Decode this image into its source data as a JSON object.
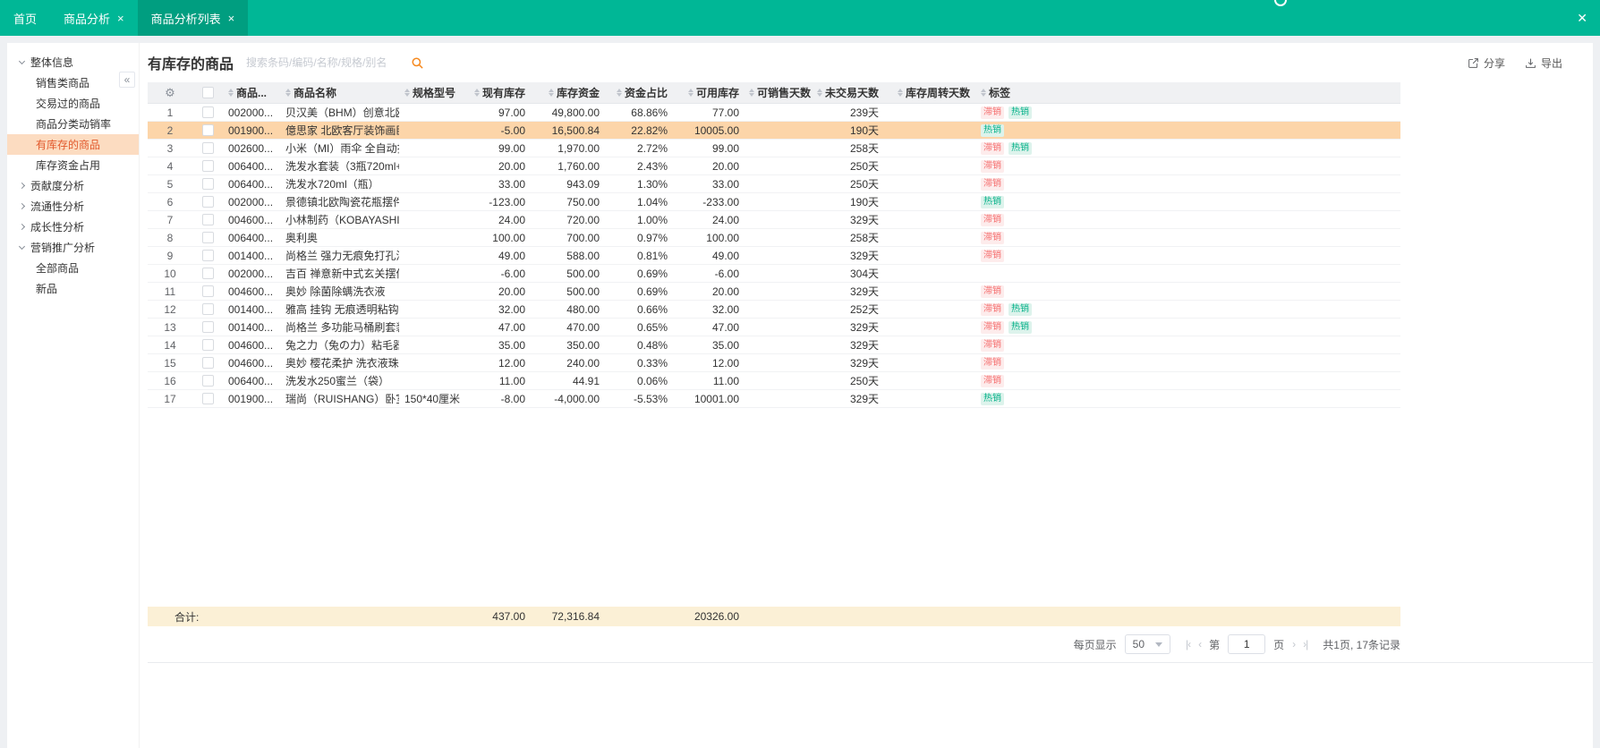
{
  "topbar": {
    "tabs": [
      {
        "label": "首页",
        "closable": false,
        "active": false
      },
      {
        "label": "商品分析",
        "closable": true,
        "active": false
      },
      {
        "label": "商品分析列表",
        "closable": true,
        "active": true
      }
    ]
  },
  "icons": {
    "close": "✕",
    "tab_close": "×",
    "collapse": "«",
    "settings": "⚙",
    "page_first": "|‹",
    "page_prev": "‹",
    "page_next": "›",
    "page_last": "›|"
  },
  "sidebar": {
    "items": [
      {
        "label": "整体信息",
        "level": 0,
        "expanded": true,
        "selected": false
      },
      {
        "label": "销售类商品",
        "level": 1,
        "selected": false
      },
      {
        "label": "交易过的商品",
        "level": 1,
        "selected": false
      },
      {
        "label": "商品分类动销率",
        "level": 1,
        "selected": false
      },
      {
        "label": "有库存的商品",
        "level": 1,
        "selected": true
      },
      {
        "label": "库存资金占用",
        "level": 1,
        "selected": false
      },
      {
        "label": "贡献度分析",
        "level": 0,
        "expanded": false,
        "selected": false
      },
      {
        "label": "流通性分析",
        "level": 0,
        "expanded": false,
        "selected": false
      },
      {
        "label": "成长性分析",
        "level": 0,
        "expanded": false,
        "selected": false
      },
      {
        "label": "营销推广分析",
        "level": 0,
        "expanded": true,
        "selected": false
      },
      {
        "label": "全部商品",
        "level": 1,
        "selected": false
      },
      {
        "label": "新品",
        "level": 1,
        "selected": false
      }
    ]
  },
  "page": {
    "title": "有库存的商品",
    "search_placeholder": "搜索条码/编码/名称/规格/别名",
    "share_label": "分享",
    "export_label": "导出"
  },
  "table": {
    "columns": [
      {
        "label": "",
        "type": "settings",
        "sortable": false,
        "align": "center"
      },
      {
        "label": "",
        "type": "checkbox",
        "sortable": false,
        "align": "center"
      },
      {
        "label": "商品...",
        "sortable": true,
        "align": "left"
      },
      {
        "label": "商品名称",
        "sortable": true,
        "align": "left"
      },
      {
        "label": "规格型号",
        "sortable": true,
        "align": "left"
      },
      {
        "label": "现有库存",
        "sortable": true,
        "align": "right"
      },
      {
        "label": "库存资金",
        "sortable": true,
        "align": "right"
      },
      {
        "label": "资金占比",
        "sortable": true,
        "align": "right"
      },
      {
        "label": "可用库存",
        "sortable": true,
        "align": "right"
      },
      {
        "label": "可销售天数",
        "sortable": true,
        "align": "right"
      },
      {
        "label": "未交易天数",
        "sortable": true,
        "align": "right"
      },
      {
        "label": "库存周转天数",
        "sortable": true,
        "align": "right"
      },
      {
        "label": "标签",
        "sortable": true,
        "align": "left"
      }
    ],
    "rows": [
      {
        "idx": "1",
        "code": "002000...",
        "name": "贝汉美（BHM）创意北欧陶瓷",
        "spec": "",
        "stock": "97.00",
        "fund": "49,800.00",
        "ratio": "68.86%",
        "avail": "77.00",
        "sell_days": "",
        "no_trade_days": "239天",
        "turnover_days": "",
        "tags": [
          "滞销",
          "热销"
        ],
        "highlighted": false
      },
      {
        "idx": "2",
        "code": "001900...",
        "name": "億思家 北欧客厅装饰画卧室",
        "spec": "",
        "stock": "-5.00",
        "fund": "16,500.84",
        "ratio": "22.82%",
        "avail": "10005.00",
        "sell_days": "",
        "no_trade_days": "190天",
        "turnover_days": "",
        "tags": [
          "热销"
        ],
        "highlighted": true
      },
      {
        "idx": "3",
        "code": "002600...",
        "name": "小米（MI）雨伞 全自动折叠",
        "spec": "",
        "stock": "99.00",
        "fund": "1,970.00",
        "ratio": "2.72%",
        "avail": "99.00",
        "sell_days": "",
        "no_trade_days": "258天",
        "turnover_days": "",
        "tags": [
          "滞销",
          "热销"
        ],
        "highlighted": false
      },
      {
        "idx": "4",
        "code": "006400...",
        "name": "洗发水套装（3瓶720ml+1瓶",
        "spec": "",
        "stock": "20.00",
        "fund": "1,760.00",
        "ratio": "2.43%",
        "avail": "20.00",
        "sell_days": "",
        "no_trade_days": "250天",
        "turnover_days": "",
        "tags": [
          "滞销"
        ],
        "highlighted": false
      },
      {
        "idx": "5",
        "code": "006400...",
        "name": "洗发水720ml（瓶）",
        "spec": "",
        "stock": "33.00",
        "fund": "943.09",
        "ratio": "1.30%",
        "avail": "33.00",
        "sell_days": "",
        "no_trade_days": "250天",
        "turnover_days": "",
        "tags": [
          "滞销"
        ],
        "highlighted": false
      },
      {
        "idx": "6",
        "code": "002000...",
        "name": "景德镇北欧陶瓷花瓶摆件 优",
        "spec": "",
        "stock": "-123.00",
        "fund": "750.00",
        "ratio": "1.04%",
        "avail": "-233.00",
        "sell_days": "",
        "no_trade_days": "190天",
        "turnover_days": "",
        "tags": [
          "热销"
        ],
        "highlighted": false
      },
      {
        "idx": "7",
        "code": "004600...",
        "name": "小林制药（KOBAYASHI）日",
        "spec": "",
        "stock": "24.00",
        "fund": "720.00",
        "ratio": "1.00%",
        "avail": "24.00",
        "sell_days": "",
        "no_trade_days": "329天",
        "turnover_days": "",
        "tags": [
          "滞销"
        ],
        "highlighted": false
      },
      {
        "idx": "8",
        "code": "006400...",
        "name": "奥利奥",
        "spec": "",
        "stock": "100.00",
        "fund": "700.00",
        "ratio": "0.97%",
        "avail": "100.00",
        "sell_days": "",
        "no_trade_days": "258天",
        "turnover_days": "",
        "tags": [
          "滞销"
        ],
        "highlighted": false
      },
      {
        "idx": "9",
        "code": "001400...",
        "name": "尚格兰 强力无痕免打孔浴室",
        "spec": "",
        "stock": "49.00",
        "fund": "588.00",
        "ratio": "0.81%",
        "avail": "49.00",
        "sell_days": "",
        "no_trade_days": "329天",
        "turnover_days": "",
        "tags": [
          "滞销"
        ],
        "highlighted": false
      },
      {
        "idx": "10",
        "code": "002000...",
        "name": "吉百 禅意新中式玄关摆件套",
        "spec": "",
        "stock": "-6.00",
        "fund": "500.00",
        "ratio": "0.69%",
        "avail": "-6.00",
        "sell_days": "",
        "no_trade_days": "304天",
        "turnover_days": "",
        "tags": [],
        "highlighted": false
      },
      {
        "idx": "11",
        "code": "004600...",
        "name": "奥妙 除菌除螨洗衣液",
        "spec": "",
        "stock": "20.00",
        "fund": "500.00",
        "ratio": "0.69%",
        "avail": "20.00",
        "sell_days": "",
        "no_trade_days": "329天",
        "turnover_days": "",
        "tags": [
          "滞销"
        ],
        "highlighted": false
      },
      {
        "idx": "12",
        "code": "001400...",
        "name": "雅高 挂钩 无痕透明粘钩 强",
        "spec": "",
        "stock": "32.00",
        "fund": "480.00",
        "ratio": "0.66%",
        "avail": "32.00",
        "sell_days": "",
        "no_trade_days": "252天",
        "turnover_days": "",
        "tags": [
          "滞销",
          "热销"
        ],
        "highlighted": false
      },
      {
        "idx": "13",
        "code": "001400...",
        "name": "尚格兰 多功能马桶刷套装 不",
        "spec": "",
        "stock": "47.00",
        "fund": "470.00",
        "ratio": "0.65%",
        "avail": "47.00",
        "sell_days": "",
        "no_trade_days": "329天",
        "turnover_days": "",
        "tags": [
          "滞销",
          "热销"
        ],
        "highlighted": false
      },
      {
        "idx": "14",
        "code": "004600...",
        "name": "兔之力（兔の力）粘毛器粘",
        "spec": "",
        "stock": "35.00",
        "fund": "350.00",
        "ratio": "0.48%",
        "avail": "35.00",
        "sell_days": "",
        "no_trade_days": "329天",
        "turnover_days": "",
        "tags": [
          "滞销"
        ],
        "highlighted": false
      },
      {
        "idx": "15",
        "code": "004600...",
        "name": "奥妙 樱花柔护 洗衣液珠 10",
        "spec": "",
        "stock": "12.00",
        "fund": "240.00",
        "ratio": "0.33%",
        "avail": "12.00",
        "sell_days": "",
        "no_trade_days": "329天",
        "turnover_days": "",
        "tags": [
          "滞销"
        ],
        "highlighted": false
      },
      {
        "idx": "16",
        "code": "006400...",
        "name": "洗发水250蜜兰（袋）",
        "spec": "",
        "stock": "11.00",
        "fund": "44.91",
        "ratio": "0.06%",
        "avail": "11.00",
        "sell_days": "",
        "no_trade_days": "250天",
        "turnover_days": "",
        "tags": [
          "滞销"
        ],
        "highlighted": false
      },
      {
        "idx": "17",
        "code": "001900...",
        "name": "瑞尚（RUISHANG）卧室地",
        "spec": "150*40厘米",
        "stock": "-8.00",
        "fund": "-4,000.00",
        "ratio": "-5.53%",
        "avail": "10001.00",
        "sell_days": "",
        "no_trade_days": "329天",
        "turnover_days": "",
        "tags": [
          "热销"
        ],
        "highlighted": false
      }
    ],
    "totals": {
      "label": "合计:",
      "stock": "437.00",
      "fund": "72,316.84",
      "avail": "20326.00"
    }
  },
  "tag_colors": {
    "滞销": {
      "bg": "#fdecec",
      "fg": "#f56c6c"
    },
    "热销": {
      "bg": "#ddf3ec",
      "fg": "#02b087"
    }
  },
  "pagination": {
    "page_size_label": "每页显示",
    "page_size": "50",
    "page_prefix": "第",
    "page_value": "1",
    "page_suffix": "页",
    "summary": "共1页, 17条记录"
  },
  "colors": {
    "topbar": "#00b796",
    "topbar_active_tab": "#009e80",
    "selected_nav_bg": "#fcdcc1",
    "selected_nav_fg": "#e2592c",
    "highlighted_row_bg": "#fcd5a9",
    "totals_row_bg": "#fbf0d6",
    "search_icon": "#f6891e"
  }
}
